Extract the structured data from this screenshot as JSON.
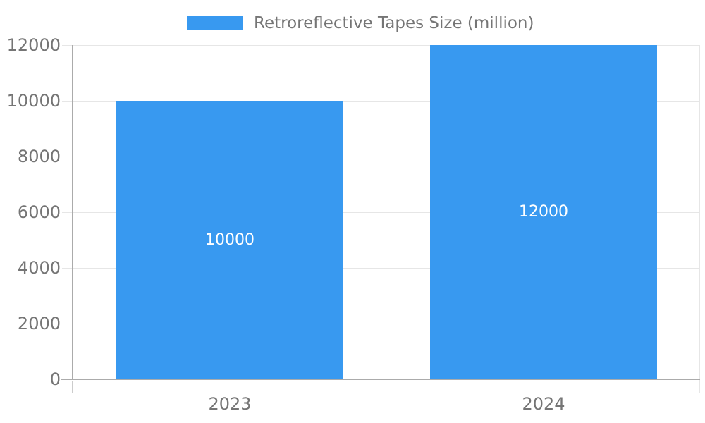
{
  "chart_data": {
    "type": "bar",
    "categories": [
      "2023",
      "2024"
    ],
    "values": [
      10000,
      12000
    ],
    "bar_value_labels": [
      "10000",
      "12000"
    ],
    "legend": [
      "Retroreflective Tapes Size (million)"
    ],
    "legend_position": "top",
    "title": "",
    "xlabel": "",
    "ylabel": "",
    "ylim": [
      0,
      12000
    ],
    "yticks": [
      0,
      2000,
      4000,
      6000,
      8000,
      10000,
      12000
    ],
    "grid": true
  },
  "colors": {
    "bar": "#3899F0",
    "grid": "#e6e6e6",
    "axis": "#ababab",
    "axis_stub": "#cccccc",
    "text": "#757575",
    "bar_label": "#ffffff",
    "background": "#ffffff"
  }
}
